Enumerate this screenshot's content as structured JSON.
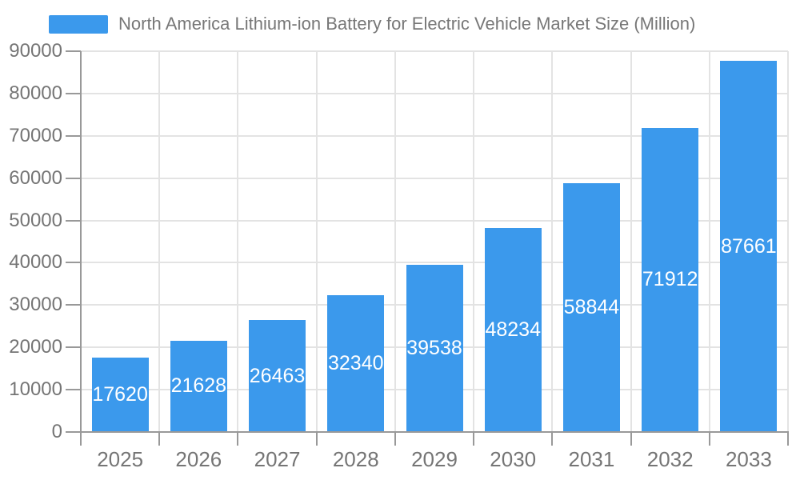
{
  "chart_data": {
    "type": "bar",
    "title": "North America Lithium-ion Battery for Electric Vehicle Market Size (Million)",
    "legend": [
      "North America Lithium-ion Battery for Electric Vehicle Market Size (Million)"
    ],
    "legend_position": "top-left",
    "categories": [
      "2025",
      "2026",
      "2027",
      "2028",
      "2029",
      "2030",
      "2031",
      "2032",
      "2033"
    ],
    "values": [
      17620,
      21628,
      26463,
      32340,
      39538,
      48234,
      58844,
      71912,
      87661
    ],
    "bar_value_labels": [
      "17620",
      "21628",
      "26463",
      "32340",
      "39538",
      "48234",
      "58844",
      "71912",
      "87661"
    ],
    "xlabel": "",
    "ylabel": "",
    "ylim": [
      0,
      90000
    ],
    "ytick_step": 10000,
    "ytick_labels": [
      "0",
      "10000",
      "20000",
      "30000",
      "40000",
      "50000",
      "60000",
      "70000",
      "80000",
      "90000"
    ],
    "grid": true,
    "bar_labels_visible": true,
    "colors": {
      "bar": "#3B99EC",
      "bar_label_text": "#FFFFFF",
      "axis_line": "#999999",
      "grid_line": "#E3E3E3",
      "axis_text": "#757575",
      "legend_text": "#777777",
      "background": "#FFFFFF"
    }
  }
}
